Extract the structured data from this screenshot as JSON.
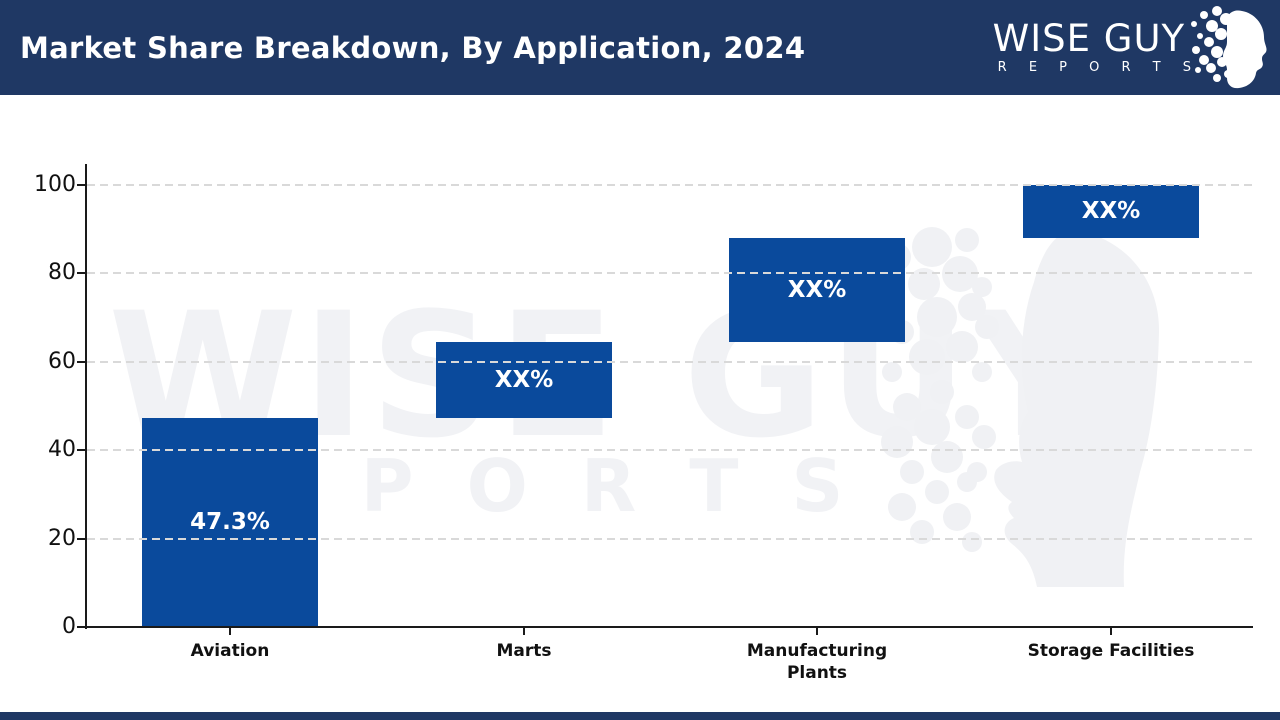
{
  "header": {
    "title": "Market Share Breakdown, By Application, 2024",
    "logo": {
      "name": "WISE GUY",
      "sub": "R E P O R T S"
    }
  },
  "watermark": {
    "big": "WISE GUY",
    "sub": "R E P O R T S"
  },
  "chart_data": {
    "type": "bar",
    "variant": "waterfall",
    "title": "Market Share Breakdown, By Application, 2024",
    "categories": [
      "Aviation",
      "Marts",
      "Manufacturing\nPlants",
      "Storage Facilities"
    ],
    "segments": [
      {
        "category": "Aviation",
        "start": 0,
        "end": 47.3,
        "label": "47.3%"
      },
      {
        "category": "Marts",
        "start": 47.3,
        "end": 64.5,
        "label": "XX%"
      },
      {
        "category": "Manufacturing Plants",
        "start": 64.5,
        "end": 88,
        "label": "XX%"
      },
      {
        "category": "Storage Facilities",
        "start": 88,
        "end": 100,
        "label": "XX%"
      }
    ],
    "xlabel": "",
    "ylabel": "",
    "ylim": [
      0,
      100
    ],
    "yticks": [
      0,
      20,
      40,
      60,
      80,
      100
    ],
    "grid": {
      "horizontal": true,
      "style": "dashed",
      "color": "#d9d9d9"
    },
    "legend": null,
    "colors": {
      "bar": "#0a4a9c",
      "bar_label": "#ffffff",
      "axis": "#1a1a1a",
      "header_bg": "#1f3864",
      "watermark": "#f1f2f5"
    }
  }
}
